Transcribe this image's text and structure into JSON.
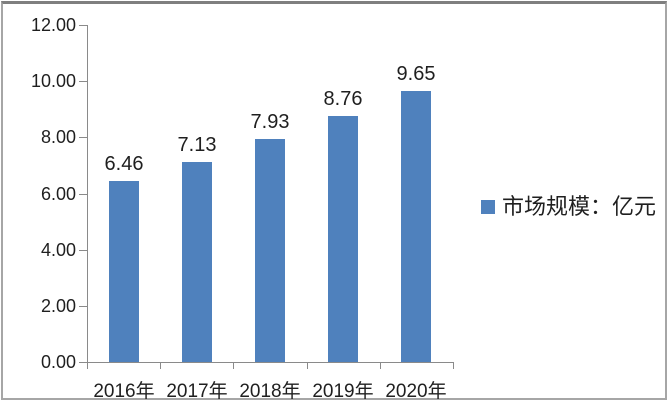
{
  "chart_data": {
    "type": "bar",
    "categories": [
      "2016年",
      "2017年",
      "2018年",
      "2019年",
      "2020年"
    ],
    "series": [
      {
        "name": "市场规模：亿元",
        "values": [
          6.46,
          7.13,
          7.93,
          8.76,
          9.65
        ]
      }
    ],
    "data_labels": [
      "6.46",
      "7.13",
      "7.93",
      "8.76",
      "9.65"
    ],
    "title": "",
    "xlabel": "",
    "ylabel": "",
    "ylim": [
      0,
      12
    ],
    "ytick_step": 2,
    "ytick_labels": [
      "0.00",
      "2.00",
      "4.00",
      "6.00",
      "8.00",
      "10.00",
      "12.00"
    ],
    "grid": false,
    "legend": {
      "label": "市场规模：亿元",
      "position": "right",
      "marker_color": "#4f81bd"
    },
    "bar_color": "#4f81bd",
    "axis_color": "#8a8a8a",
    "text_color": "#1f1f1f",
    "frame_border_color": "#a6a6a6"
  }
}
